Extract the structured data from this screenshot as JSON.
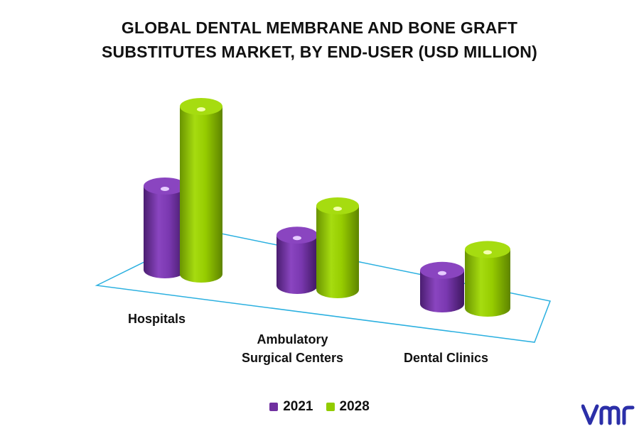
{
  "chart_data": {
    "type": "bar",
    "title": "GLOBAL DENTAL MEMBRANE AND BONE GRAFT SUBSTITUTES MARKET, BY END-USER (USD MILLION)",
    "title_lines": [
      "GLOBAL DENTAL MEMBRANE AND BONE GRAFT",
      "SUBSTITUTES MARKET, BY END-USER (USD MILLION)"
    ],
    "categories": [
      "Hospitals",
      "Ambulatory Surgical Centers",
      "Dental Clinics"
    ],
    "category_lines": [
      [
        "Hospitals"
      ],
      [
        "Ambulatory",
        "Surgical Centers"
      ],
      [
        "Dental Clinics"
      ]
    ],
    "series": [
      {
        "name": "2021",
        "values": [
          50,
          30,
          20
        ],
        "color": "#7030a0"
      },
      {
        "name": "2028",
        "values": [
          100,
          50,
          35
        ],
        "color": "#92cc00"
      }
    ],
    "style": "3d-cylinder",
    "legend_position": "bottom",
    "grid": false
  },
  "brand": {
    "logo": "vmr-logo",
    "color": "#2b2fa8"
  }
}
